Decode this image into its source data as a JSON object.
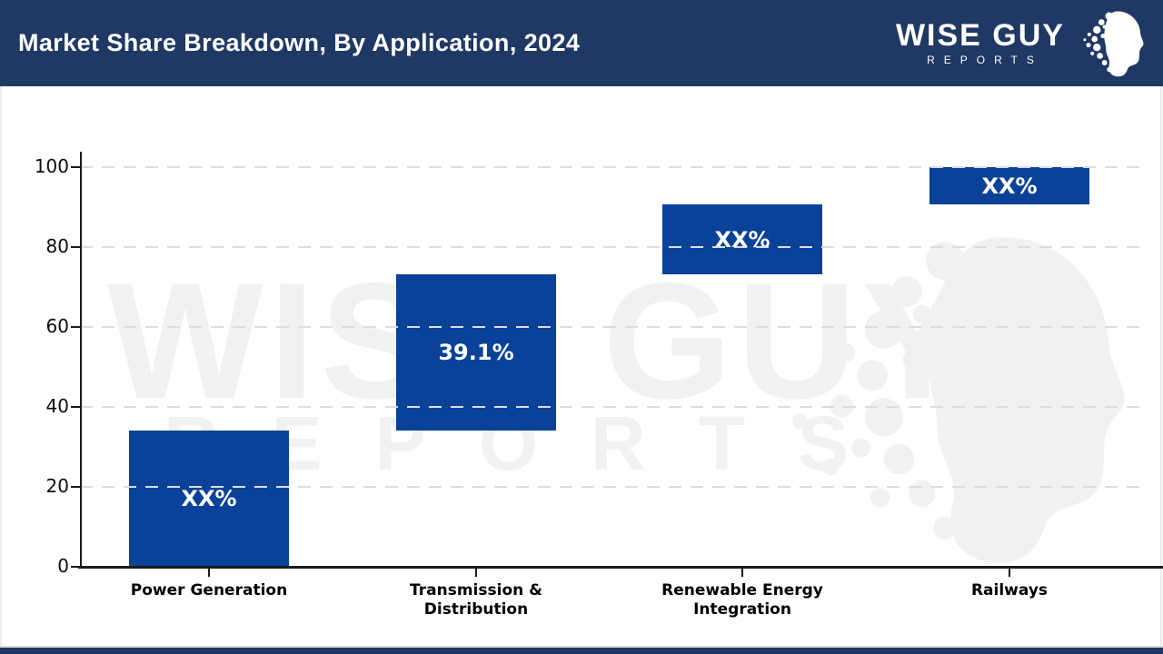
{
  "header": {
    "title": "Market Share Breakdown, By Application, 2024",
    "logo_line1": "WISE GUY",
    "logo_line2": "REPORTS",
    "bg_color": "#1f3864"
  },
  "watermark": {
    "line1": "WISE GUY",
    "line2": "REPORTS"
  },
  "chart_data": {
    "type": "bar",
    "subtype": "waterfall",
    "title": "Market Share Breakdown, By Application, 2024",
    "xlabel": "",
    "ylabel": "",
    "ylim": [
      0,
      105
    ],
    "yticks": [
      0,
      20,
      40,
      60,
      80,
      100
    ],
    "grid": "horizontal dashed, drawn over bars",
    "legend": "none",
    "bar_color": "#0a4299",
    "value_label_color": "#ffffff",
    "categories": [
      "Power Generation",
      "Transmission & Distribution",
      "Renewable Energy Integration",
      "Railways"
    ],
    "segments": [
      {
        "category": "Power Generation",
        "category_lines": [
          "Power Generation"
        ],
        "start": 0,
        "end": 34.1,
        "label": "XX%"
      },
      {
        "category": "Transmission & Distribution",
        "category_lines": [
          "Transmission &",
          "Distribution"
        ],
        "start": 34.1,
        "end": 73.2,
        "label": "39.1%"
      },
      {
        "category": "Renewable Energy Integration",
        "category_lines": [
          "Renewable Energy",
          "Integration"
        ],
        "start": 73.2,
        "end": 90.6,
        "label": "XX%"
      },
      {
        "category": "Railways",
        "category_lines": [
          "Railways"
        ],
        "start": 90.6,
        "end": 100,
        "label": "XX%"
      }
    ]
  },
  "footer": {
    "bar_color": "#1f3864"
  }
}
